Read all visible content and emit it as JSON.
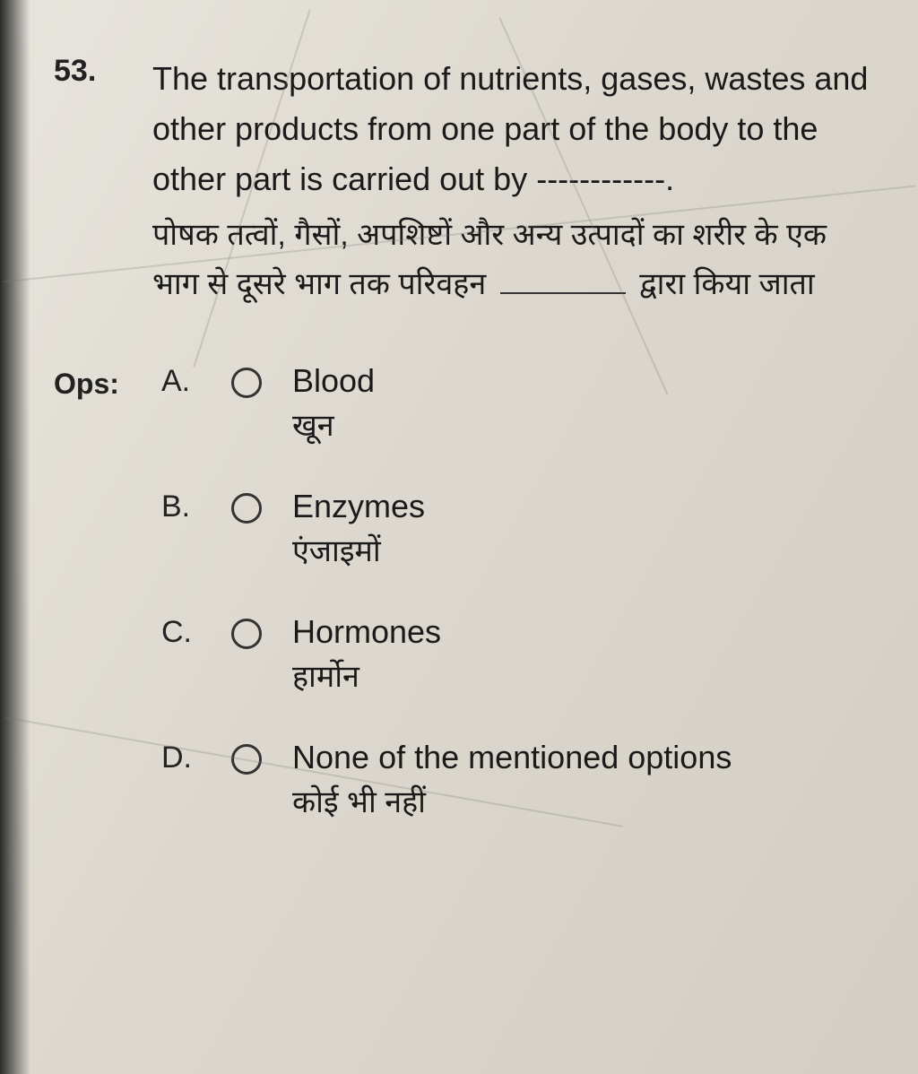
{
  "question": {
    "number": "53.",
    "text_en": "The transportation of nutrients, gases, wastes and other products from one part of the body to the other part is carried out by ------------.",
    "text_hi_pre": "पोषक तत्वों, गैसों, अपशिष्टों और अन्य उत्पादों का शरीर के एक भाग से दूसरे भाग तक परिवहन",
    "text_hi_post": "द्वारा किया जाता"
  },
  "ops_label": "Ops:",
  "options": [
    {
      "letter": "A.",
      "en": "Blood",
      "hi": "खून"
    },
    {
      "letter": "B.",
      "en": "Enzymes",
      "hi": "एंजाइमों"
    },
    {
      "letter": "C.",
      "en": "Hormones",
      "hi": "हार्मोन"
    },
    {
      "letter": "D.",
      "en": "None of the mentioned options",
      "hi": "कोई भी नहीं"
    }
  ]
}
